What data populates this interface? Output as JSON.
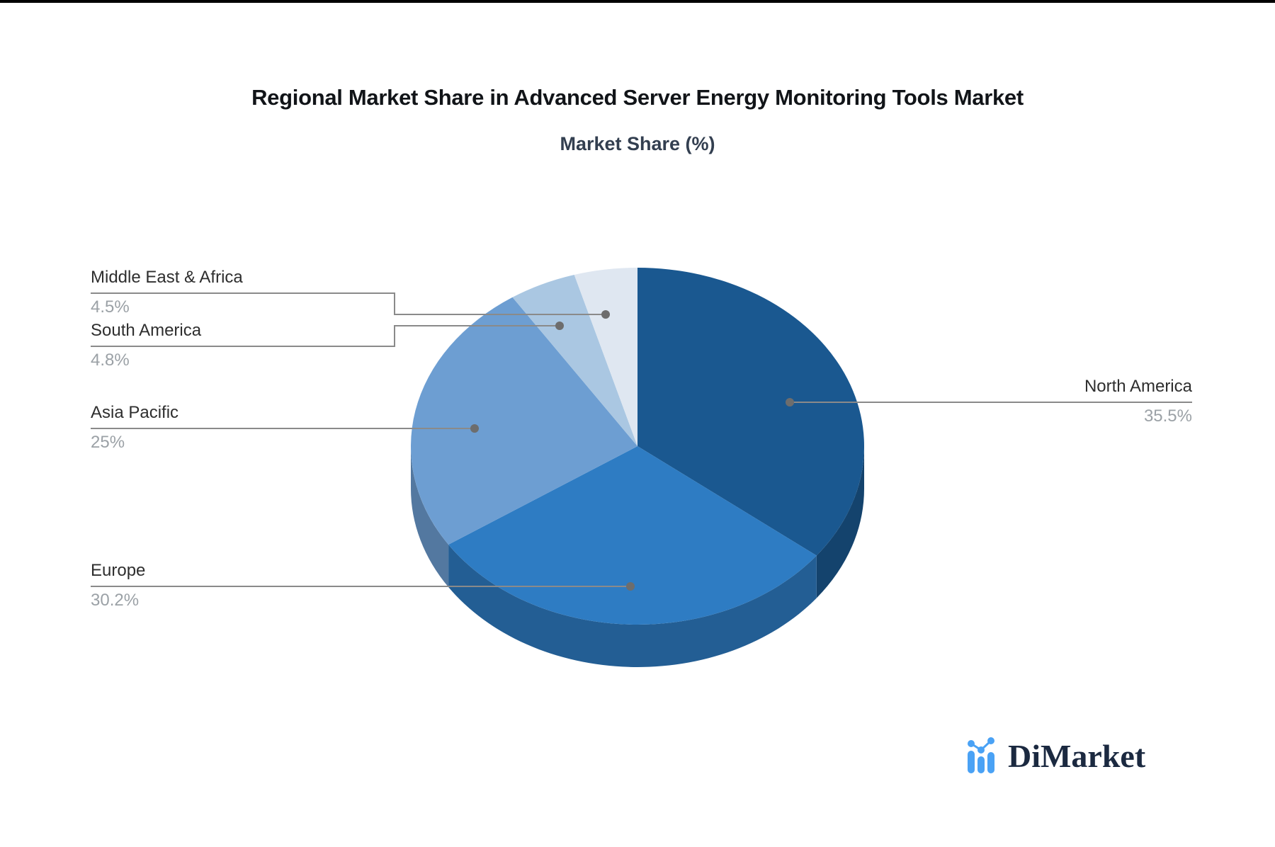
{
  "chart_data": {
    "type": "pie",
    "style": "3d",
    "title": "Regional Market Share in Advanced Server Energy Monitoring Tools Market",
    "subtitle": "Market Share (%)",
    "unit": "%",
    "start_angle": "12 o'clock, clockwise",
    "legend_position": "callout labels with leader lines",
    "callout_line_color": "#8a8a8a",
    "callout_dot_color": "#6d6d6d",
    "segments": [
      {
        "label": "North America",
        "value": 35.5,
        "display": "35.5%",
        "color": "#1a5890"
      },
      {
        "label": "Europe",
        "value": 30.2,
        "display": "30.2%",
        "color": "#2e7cc3"
      },
      {
        "label": "Asia Pacific",
        "value": 25,
        "display": "25%",
        "color": "#6d9ed2"
      },
      {
        "label": "South America",
        "value": 4.8,
        "display": "4.8%",
        "color": "#aac7e2"
      },
      {
        "label": "Middle East & Africa",
        "value": 4.5,
        "display": "4.5%",
        "color": "#dfe7f1"
      }
    ]
  },
  "branding": {
    "logo_text": "DiMarket",
    "logo_icon": "bar-line-chart-icon",
    "logo_icon_color": "#4aa2f5",
    "logo_text_color": "#1b2940"
  }
}
